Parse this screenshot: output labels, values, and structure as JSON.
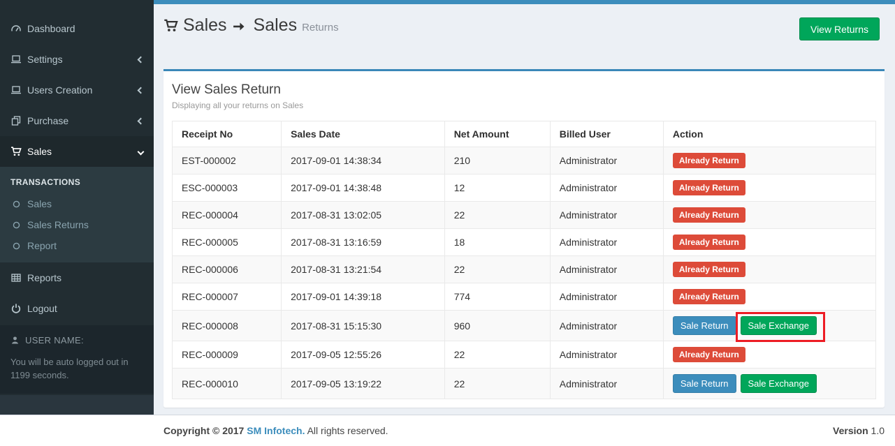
{
  "colors": {
    "accent_blue": "#3c8dbc",
    "success_green": "#00a65a",
    "danger_red": "#dd4b39",
    "highlight_red": "#ed1c24",
    "sidebar_dark": "#222d32"
  },
  "sidebar": {
    "items": [
      {
        "label": "Dashboard",
        "icon": "dashboard"
      },
      {
        "label": "Settings",
        "icon": "laptop",
        "chevron": "left"
      },
      {
        "label": "Users Creation",
        "icon": "desktop",
        "chevron": "left"
      },
      {
        "label": "Purchase",
        "icon": "copy",
        "chevron": "left"
      },
      {
        "label": "Sales",
        "icon": "cart",
        "chevron": "down",
        "active": true
      }
    ],
    "section_label": "TRANSACTIONS",
    "submenu": [
      {
        "label": "Sales"
      },
      {
        "label": "Sales Returns"
      },
      {
        "label": "Report"
      }
    ],
    "items_bottom": [
      {
        "label": "Reports",
        "icon": "table"
      },
      {
        "label": "Logout",
        "icon": "power"
      }
    ],
    "user_label": "USER NAME:",
    "logout_notice": "You will be auto logged out in 1199 seconds."
  },
  "header": {
    "title_primary": "Sales",
    "title_secondary": "Sales",
    "title_sub": "Returns",
    "view_returns_label": "View Returns"
  },
  "panel": {
    "title": "View Sales Return",
    "subtitle": "Displaying all your returns on Sales"
  },
  "table": {
    "columns": [
      "Receipt No",
      "Sales Date",
      "Net Amount",
      "Billed User",
      "Action"
    ],
    "rows": [
      {
        "receipt_no": "EST-000002",
        "sales_date": "2017-09-01 14:38:34",
        "net_amount": "210",
        "billed_user": "Administrator",
        "actions": [
          "already_return"
        ]
      },
      {
        "receipt_no": "ESC-000003",
        "sales_date": "2017-09-01 14:38:48",
        "net_amount": "12",
        "billed_user": "Administrator",
        "actions": [
          "already_return"
        ]
      },
      {
        "receipt_no": "REC-000004",
        "sales_date": "2017-08-31 13:02:05",
        "net_amount": "22",
        "billed_user": "Administrator",
        "actions": [
          "already_return"
        ]
      },
      {
        "receipt_no": "REC-000005",
        "sales_date": "2017-08-31 13:16:59",
        "net_amount": "18",
        "billed_user": "Administrator",
        "actions": [
          "already_return"
        ]
      },
      {
        "receipt_no": "REC-000006",
        "sales_date": "2017-08-31 13:21:54",
        "net_amount": "22",
        "billed_user": "Administrator",
        "actions": [
          "already_return"
        ]
      },
      {
        "receipt_no": "REC-000007",
        "sales_date": "2017-09-01 14:39:18",
        "net_amount": "774",
        "billed_user": "Administrator",
        "actions": [
          "already_return"
        ]
      },
      {
        "receipt_no": "REC-000008",
        "sales_date": "2017-08-31 15:15:30",
        "net_amount": "960",
        "billed_user": "Administrator",
        "actions": [
          "sale_return",
          "sale_exchange"
        ],
        "highlight": "sale_exchange"
      },
      {
        "receipt_no": "REC-000009",
        "sales_date": "2017-09-05 12:55:26",
        "net_amount": "22",
        "billed_user": "Administrator",
        "actions": [
          "already_return"
        ]
      },
      {
        "receipt_no": "REC-000010",
        "sales_date": "2017-09-05 13:19:22",
        "net_amount": "22",
        "billed_user": "Administrator",
        "actions": [
          "sale_return",
          "sale_exchange"
        ]
      }
    ]
  },
  "action_labels": {
    "already_return": "Already Return",
    "sale_return": "Sale Return",
    "sale_exchange": "Sale Exchange"
  },
  "footer": {
    "copyright_prefix": "Copyright © 2017",
    "brand": "SM Infotech.",
    "suffix": "All rights reserved.",
    "version_label": "Version",
    "version_value": "1.0"
  }
}
